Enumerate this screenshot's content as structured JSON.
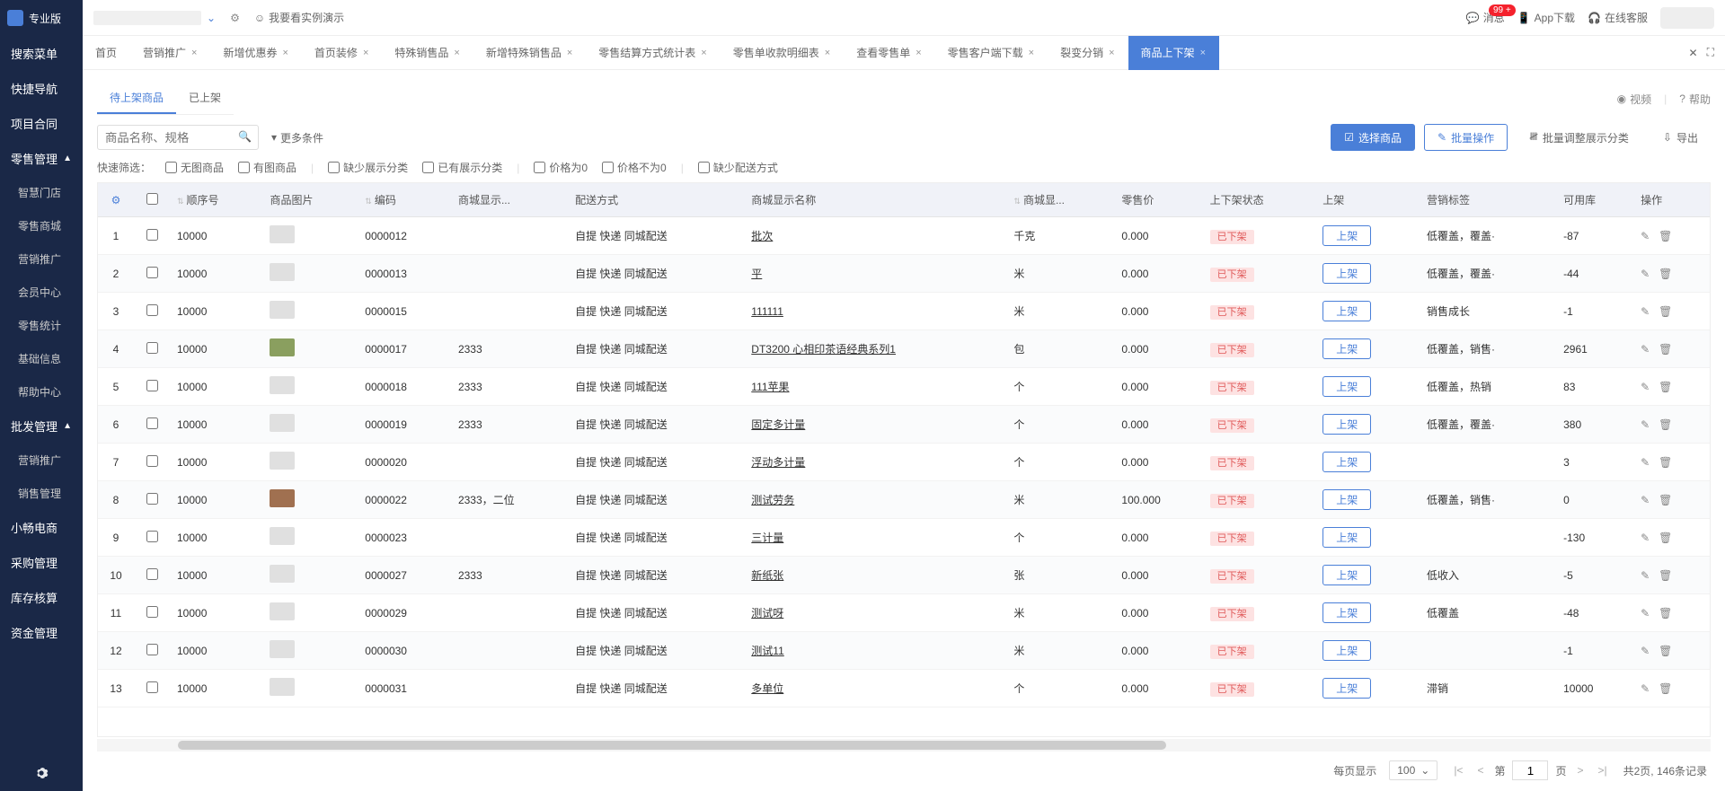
{
  "brand": {
    "edition": "专业版"
  },
  "topbar": {
    "demo_link": "我要看实例演示",
    "msg": "消息",
    "msg_badge": "99 +",
    "app": "App下载",
    "service": "在线客服"
  },
  "tabs": [
    {
      "label": "首页",
      "closable": false
    },
    {
      "label": "营销推广",
      "closable": true
    },
    {
      "label": "新增优惠券",
      "closable": true
    },
    {
      "label": "首页装修",
      "closable": true
    },
    {
      "label": "特殊销售品",
      "closable": true
    },
    {
      "label": "新增特殊销售品",
      "closable": true
    },
    {
      "label": "零售结算方式统计表",
      "closable": true
    },
    {
      "label": "零售单收款明细表",
      "closable": true
    },
    {
      "label": "查看零售单",
      "closable": true
    },
    {
      "label": "零售客户端下载",
      "closable": true
    },
    {
      "label": "裂变分销",
      "closable": true
    },
    {
      "label": "商品上下架",
      "closable": true,
      "active": true
    }
  ],
  "sidebar": [
    {
      "label": "搜索菜单"
    },
    {
      "label": "快捷导航"
    },
    {
      "label": "项目合同"
    },
    {
      "label": "零售管理",
      "caret": "▲"
    },
    {
      "label": "智慧门店",
      "sub": true
    },
    {
      "label": "零售商城",
      "sub": true
    },
    {
      "label": "营销推广",
      "sub": true
    },
    {
      "label": "会员中心",
      "sub": true
    },
    {
      "label": "零售统计",
      "sub": true
    },
    {
      "label": "基础信息",
      "sub": true
    },
    {
      "label": "帮助中心",
      "sub": true
    },
    {
      "label": "批发管理",
      "caret": "▲"
    },
    {
      "label": "营销推广",
      "sub": true
    },
    {
      "label": "销售管理",
      "sub": true
    },
    {
      "label": "小畅电商"
    },
    {
      "label": "采购管理"
    },
    {
      "label": "库存核算"
    },
    {
      "label": "资金管理"
    }
  ],
  "subtabs": {
    "pending": "待上架商品",
    "listed": "已上架"
  },
  "help": {
    "video": "视频",
    "help": "帮助"
  },
  "search": {
    "placeholder": "商品名称、规格",
    "more": "更多条件"
  },
  "actions": {
    "select": "选择商品",
    "bulk": "批量操作",
    "adjust": "批量调整展示分类",
    "export": "导出"
  },
  "quickfilter": {
    "label": "快速筛选：",
    "items": [
      "无图商品",
      "有图商品",
      "缺少展示分类",
      "已有展示分类",
      "价格为0",
      "价格不为0",
      "缺少配送方式"
    ]
  },
  "columns": {
    "seq": "顺序号",
    "img": "商品图片",
    "code": "编码",
    "show": "商城显示...",
    "delivery": "配送方式",
    "name": "商城显示名称",
    "unit": "商城显...",
    "price": "零售价",
    "status": "上下架状态",
    "onshelf": "上架",
    "tag": "营销标签",
    "stock": "可用库",
    "op": "操作"
  },
  "status_label": "已下架",
  "onshelf_btn": "上架",
  "delivery_text": "自提 快递 同城配送",
  "rows": [
    {
      "idx": "1",
      "seq": "10000",
      "img": 0,
      "code": "0000012",
      "show": "",
      "name": "批次",
      "unit": "千克",
      "price": "0.000",
      "tag": "低覆盖，覆盖·",
      "stock": "-87"
    },
    {
      "idx": "2",
      "seq": "10000",
      "img": 0,
      "code": "0000013",
      "show": "",
      "name": "平",
      "unit": "米",
      "price": "0.000",
      "tag": "低覆盖，覆盖·",
      "stock": "-44"
    },
    {
      "idx": "3",
      "seq": "10000",
      "img": 0,
      "code": "0000015",
      "show": "",
      "name": "111111",
      "unit": "米",
      "price": "0.000",
      "tag": "销售成长",
      "stock": "-1"
    },
    {
      "idx": "4",
      "seq": "10000",
      "img": 1,
      "code": "0000017",
      "show": "2333",
      "name": "DT3200 心相印茶语经典系列1",
      "unit": "包",
      "price": "0.000",
      "tag": "低覆盖，销售·",
      "stock": "2961"
    },
    {
      "idx": "5",
      "seq": "10000",
      "img": 0,
      "code": "0000018",
      "show": "2333",
      "name": "111苹果",
      "unit": "个",
      "price": "0.000",
      "tag": "低覆盖，热销",
      "stock": "83"
    },
    {
      "idx": "6",
      "seq": "10000",
      "img": 0,
      "code": "0000019",
      "show": "2333",
      "name": "固定多计量",
      "unit": "个",
      "price": "0.000",
      "tag": "低覆盖，覆盖·",
      "stock": "380"
    },
    {
      "idx": "7",
      "seq": "10000",
      "img": 0,
      "code": "0000020",
      "show": "",
      "name": "浮动多计量",
      "unit": "个",
      "price": "0.000",
      "tag": "",
      "stock": "3"
    },
    {
      "idx": "8",
      "seq": "10000",
      "img": 2,
      "code": "0000022",
      "show": "2333，二位",
      "name": "测试劳务",
      "unit": "米",
      "price": "100.000",
      "tag": "低覆盖，销售·",
      "stock": "0"
    },
    {
      "idx": "9",
      "seq": "10000",
      "img": 0,
      "code": "0000023",
      "show": "",
      "name": "三计量",
      "unit": "个",
      "price": "0.000",
      "tag": "",
      "stock": "-130"
    },
    {
      "idx": "10",
      "seq": "10000",
      "img": 0,
      "code": "0000027",
      "show": "2333",
      "name": "新纸张",
      "unit": "张",
      "price": "0.000",
      "tag": "低收入",
      "stock": "-5"
    },
    {
      "idx": "11",
      "seq": "10000",
      "img": 0,
      "code": "0000029",
      "show": "",
      "name": "测试呀",
      "unit": "米",
      "price": "0.000",
      "tag": "低覆盖",
      "stock": "-48"
    },
    {
      "idx": "12",
      "seq": "10000",
      "img": 0,
      "code": "0000030",
      "show": "",
      "name": "测试11",
      "unit": "米",
      "price": "0.000",
      "tag": "",
      "stock": "-1"
    },
    {
      "idx": "13",
      "seq": "10000",
      "img": 0,
      "code": "0000031",
      "show": "",
      "name": "多单位",
      "unit": "个",
      "price": "0.000",
      "tag": "滞销",
      "stock": "10000"
    }
  ],
  "pagination": {
    "perpage_label": "每页显示",
    "perpage": "100",
    "page_label_pre": "第",
    "page": "1",
    "page_label_post": "页",
    "summary": "共2页, 146条记录"
  }
}
